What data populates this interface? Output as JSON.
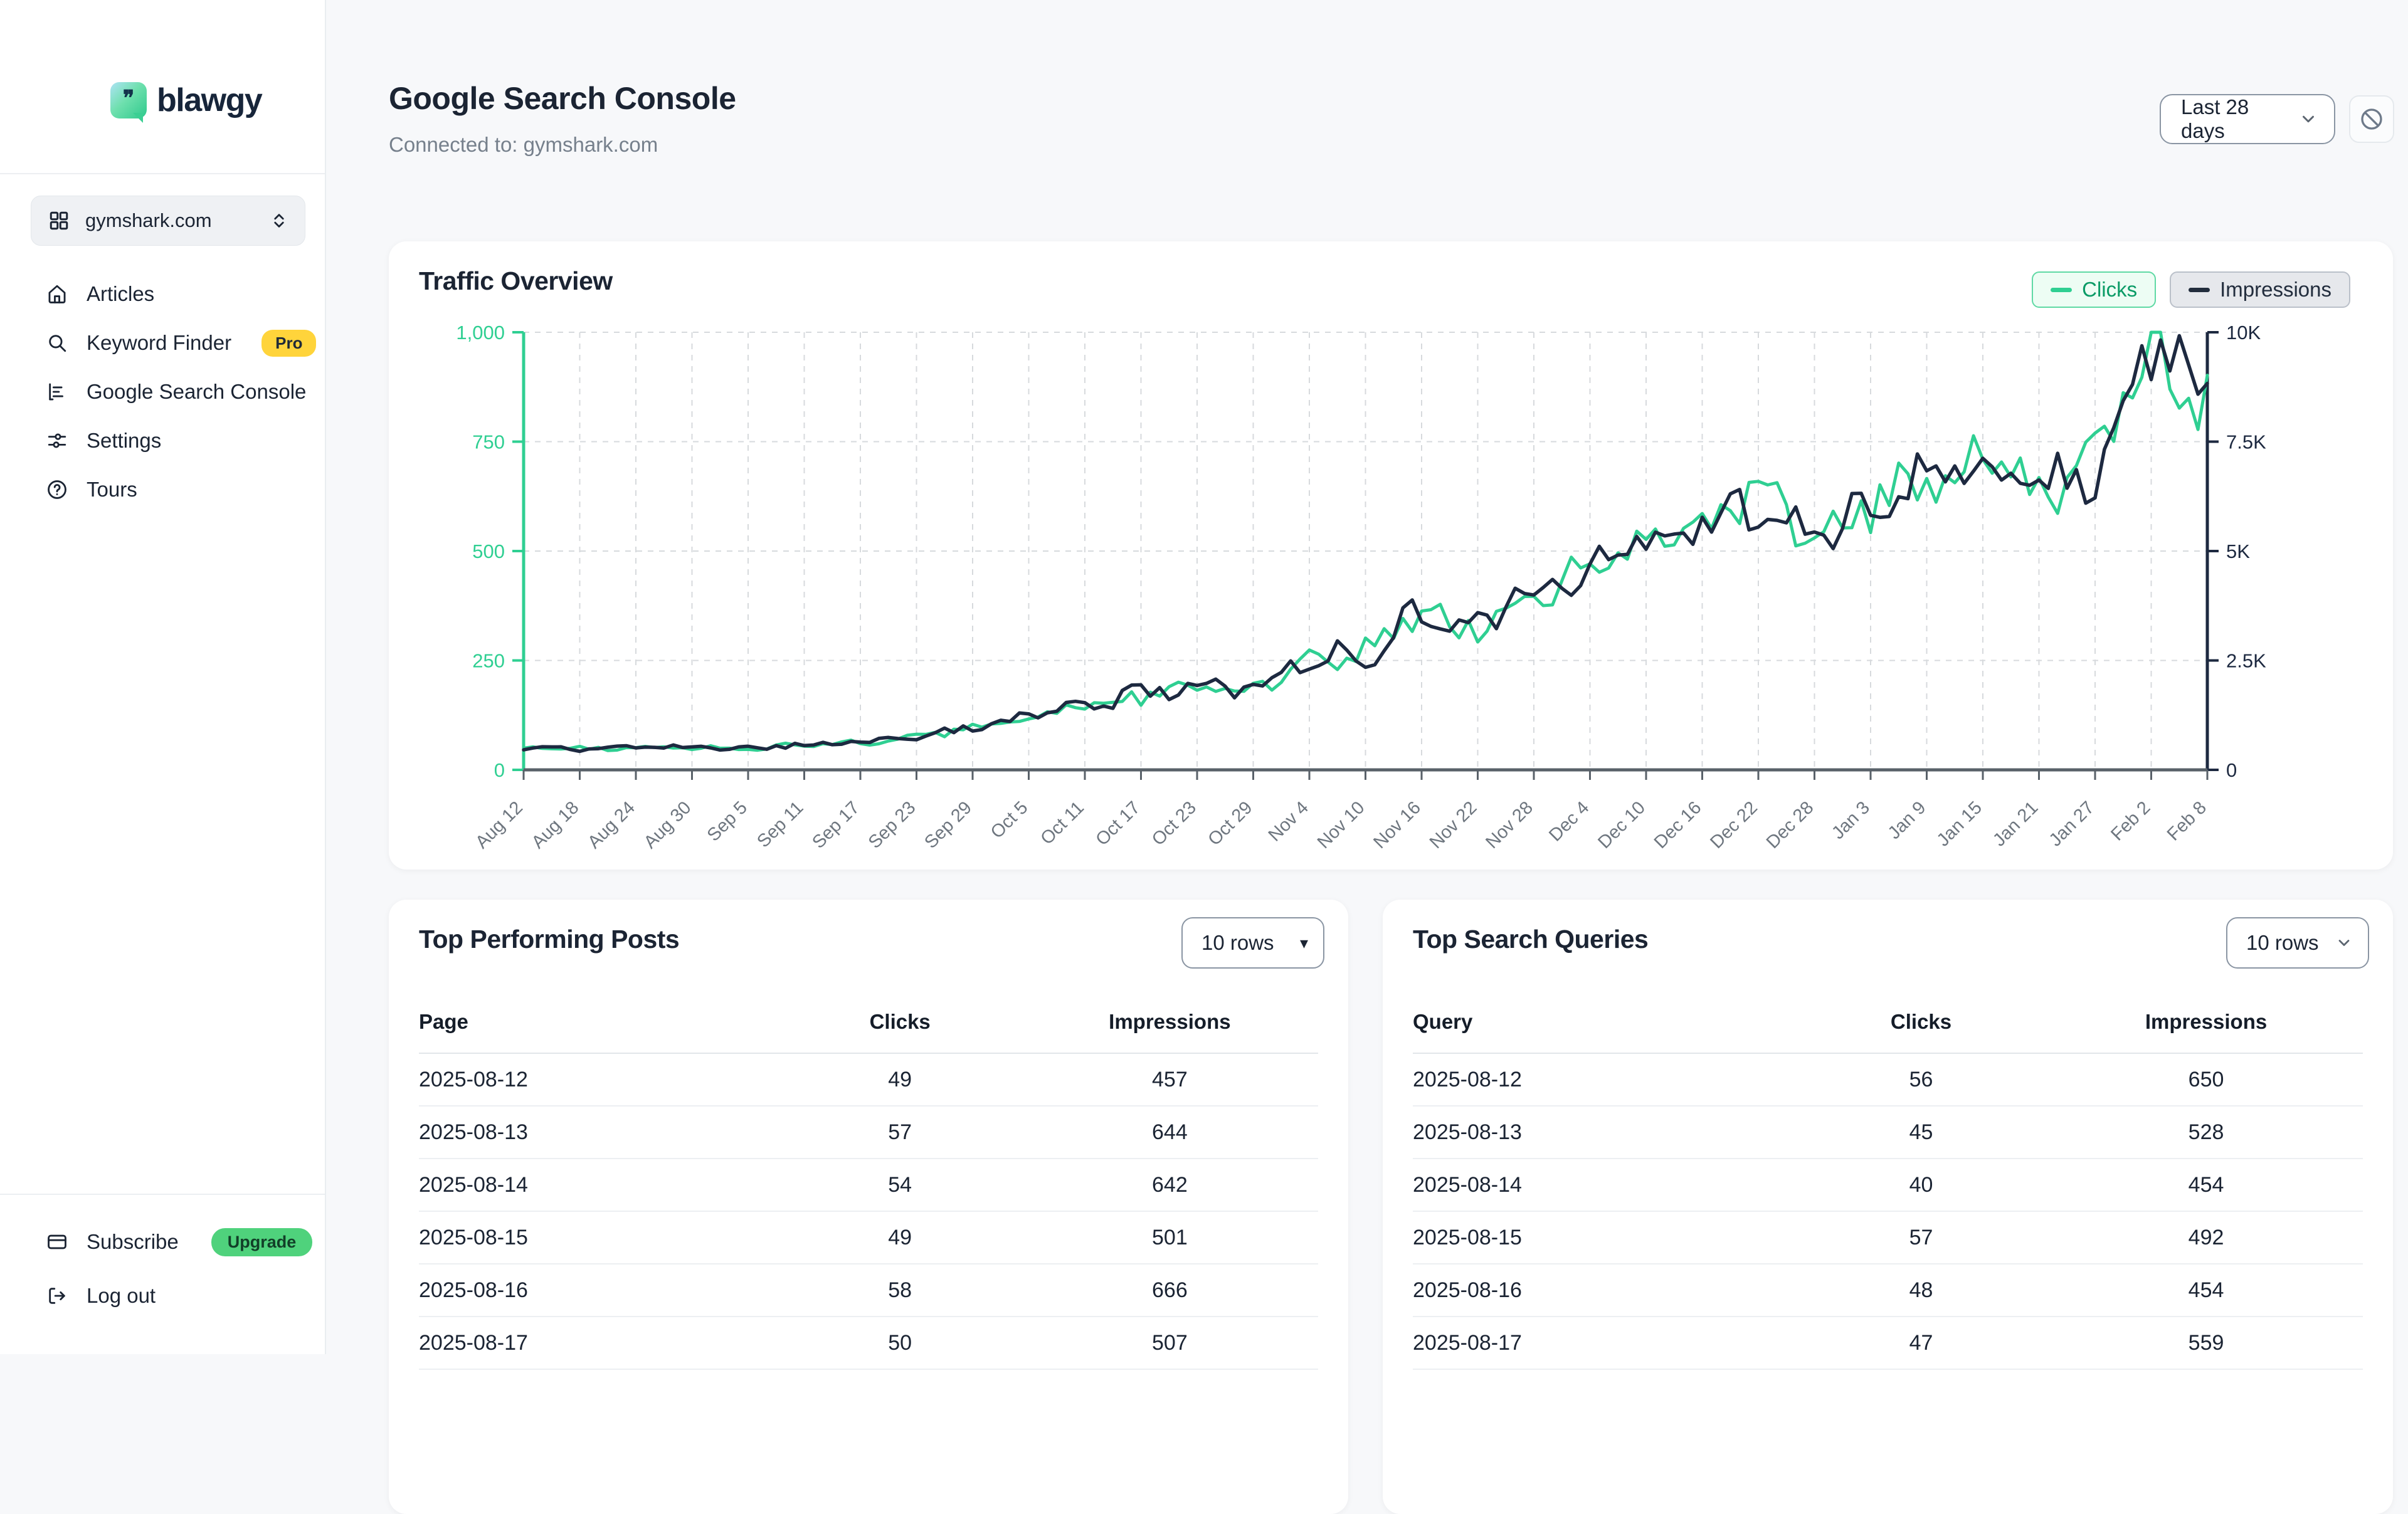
{
  "brand": {
    "name": "blawgy"
  },
  "sidebar": {
    "workspace": "gymshark.com",
    "items": [
      {
        "label": "Articles"
      },
      {
        "label": "Keyword Finder",
        "badge": "Pro"
      },
      {
        "label": "Google Search Console"
      },
      {
        "label": "Settings"
      },
      {
        "label": "Tours"
      }
    ],
    "footer": [
      {
        "label": "Subscribe",
        "badge": "Upgrade"
      },
      {
        "label": "Log out"
      }
    ]
  },
  "header": {
    "title": "Google Search Console",
    "subtitle": "Connected to: gymshark.com",
    "range_label": "Last 28 days"
  },
  "traffic": {
    "title": "Traffic Overview",
    "legend": [
      {
        "label": "Clicks"
      },
      {
        "label": "Impressions"
      }
    ]
  },
  "posts_card": {
    "title": "Top Performing Posts",
    "rows_label": "10 rows",
    "columns": [
      "Page",
      "Clicks",
      "Impressions"
    ],
    "rows": [
      [
        "2025-08-12",
        "49",
        "457"
      ],
      [
        "2025-08-13",
        "57",
        "644"
      ],
      [
        "2025-08-14",
        "54",
        "642"
      ],
      [
        "2025-08-15",
        "49",
        "501"
      ],
      [
        "2025-08-16",
        "58",
        "666"
      ],
      [
        "2025-08-17",
        "50",
        "507"
      ]
    ]
  },
  "queries_card": {
    "title": "Top Search Queries",
    "rows_label": "10 rows",
    "columns": [
      "Query",
      "Clicks",
      "Impressions"
    ],
    "rows": [
      [
        "2025-08-12",
        "56",
        "650"
      ],
      [
        "2025-08-13",
        "45",
        "528"
      ],
      [
        "2025-08-14",
        "40",
        "454"
      ],
      [
        "2025-08-15",
        "57",
        "492"
      ],
      [
        "2025-08-16",
        "48",
        "454"
      ],
      [
        "2025-08-17",
        "47",
        "559"
      ]
    ]
  },
  "chart_data": {
    "type": "line",
    "title": "Traffic Overview",
    "x_tick_labels": [
      "Aug 12",
      "Aug 18",
      "Aug 24",
      "Aug 30",
      "Sep 5",
      "Sep 11",
      "Sep 17",
      "Sep 23",
      "Sep 29",
      "Oct 5",
      "Oct 11",
      "Oct 17",
      "Oct 23",
      "Oct 29",
      "Nov 4",
      "Nov 10",
      "Nov 16",
      "Nov 22",
      "Nov 28",
      "Dec 4",
      "Dec 10",
      "Dec 16",
      "Dec 22",
      "Dec 28",
      "Jan 3",
      "Jan 9",
      "Jan 15",
      "Jan 21",
      "Jan 27",
      "Feb 2",
      "Feb 8"
    ],
    "series": [
      {
        "name": "Clicks",
        "axis": "left",
        "color": "#2fcf92",
        "values_at_ticks": [
          50,
          48,
          50,
          52,
          50,
          57,
          62,
          75,
          95,
          120,
          145,
          170,
          190,
          185,
          250,
          270,
          355,
          330,
          400,
          455,
          515,
          555,
          615,
          520,
          605,
          680,
          700,
          625,
          700,
          955,
          835
        ]
      },
      {
        "name": "Impressions",
        "axis": "right",
        "color": "#1d2940",
        "values_at_ticks": [
          500,
          475,
          500,
          525,
          500,
          570,
          630,
          760,
          950,
          1200,
          1450,
          1750,
          1900,
          1850,
          2500,
          2700,
          3550,
          3300,
          4000,
          4550,
          5150,
          5550,
          6150,
          5200,
          6050,
          6900,
          7100,
          6250,
          7000,
          9900,
          8500
        ]
      }
    ],
    "left_axis": {
      "ticks": [
        "0",
        "250",
        "500",
        "750",
        "1,000"
      ],
      "min": 0,
      "max": 1000,
      "color": "#2fcf92"
    },
    "right_axis": {
      "ticks": [
        "0",
        "2.5K",
        "5K",
        "7.5K",
        "10K"
      ],
      "min": 0,
      "max": 10000,
      "color": "#1d2940"
    },
    "grid": "dashed",
    "legend_position": "top-right"
  }
}
